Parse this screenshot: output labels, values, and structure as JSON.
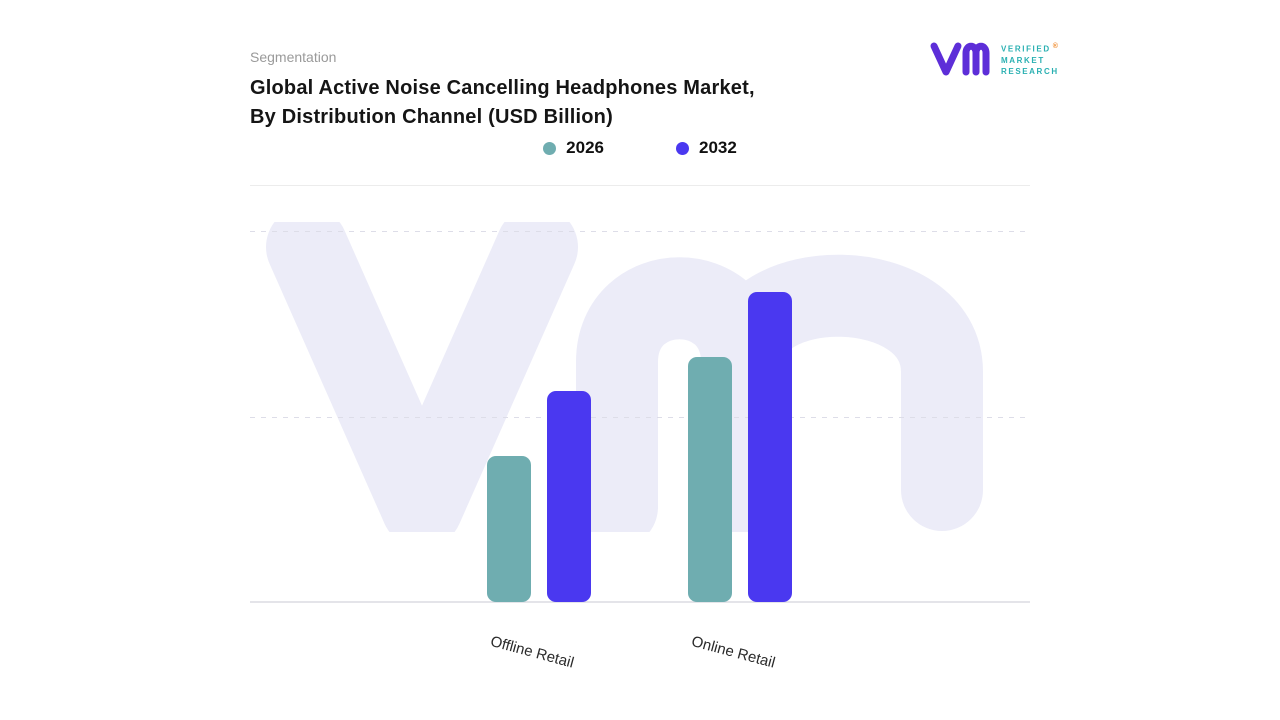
{
  "meta": {
    "eyebrow": "Segmentation",
    "title_line1": "Global Active Noise Cancelling Headphones Market,",
    "title_line2": "By Distribution Channel (USD Billion)"
  },
  "logo": {
    "brand_lines": [
      "VERIFIED",
      "MARKET",
      "RESEARCH"
    ],
    "registered": "®",
    "glyph_color": "#5d2ed8",
    "text_color": "#2ab0b2"
  },
  "colors": {
    "series_2026": "#6fadb0",
    "series_2032": "#4a38f0",
    "watermark": "#ececf8",
    "gridline": "#dddde8",
    "baseline": "#e4e4e9"
  },
  "chart_data": {
    "type": "bar",
    "title": "Global Active Noise Cancelling Headphones Market, By Distribution Channel (USD Billion)",
    "units": "USD Billion",
    "categories": [
      "Offline Retail",
      "Online Retail"
    ],
    "series": [
      {
        "name": "2026",
        "color": "#6fadb0",
        "values": [
          4.7,
          7.9
        ]
      },
      {
        "name": "2032",
        "color": "#4a38f0",
        "values": [
          6.8,
          10.0
        ]
      }
    ],
    "xlabel": "",
    "ylabel": "",
    "ylim": [
      0,
      12
    ],
    "grid": "horizontal-dashed",
    "legend_position": "top-center"
  }
}
